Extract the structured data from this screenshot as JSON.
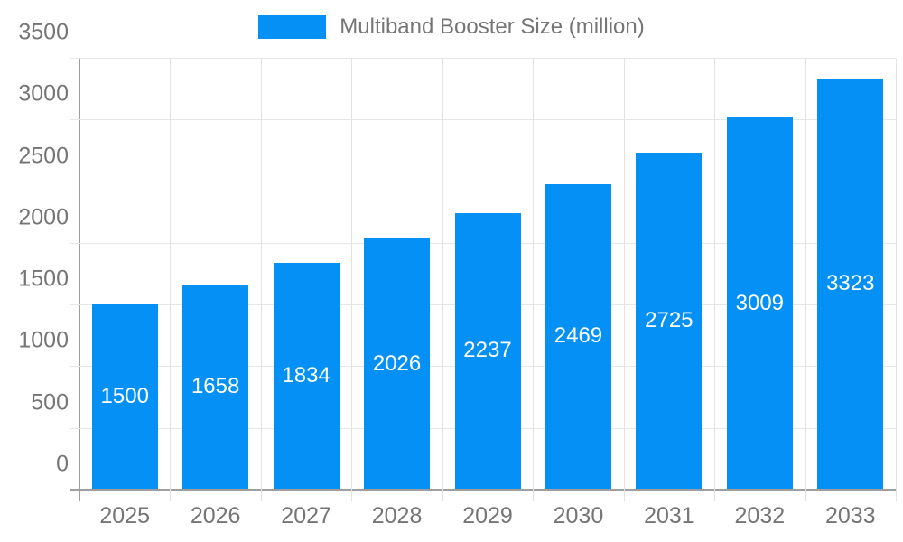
{
  "legend": {
    "label": "Multiband Booster Size (million)"
  },
  "chart_data": {
    "type": "bar",
    "title": "Multiband Booster Size (million)",
    "categories": [
      "2025",
      "2026",
      "2027",
      "2028",
      "2029",
      "2030",
      "2031",
      "2032",
      "2033"
    ],
    "values": [
      1500,
      1658,
      1834,
      2026,
      2237,
      2469,
      2725,
      3009,
      3323
    ],
    "xlabel": "",
    "ylabel": "",
    "ylim": [
      0,
      3500
    ],
    "ytick_step": 500,
    "ytick_labels": [
      "0",
      "500",
      "1000",
      "1500",
      "2000",
      "2500",
      "3000",
      "3500"
    ],
    "grid": true,
    "legend_position": "top-center",
    "value_label_style": "inside-center-white",
    "colors": {
      "bar": "#0590f5",
      "axis_text": "#757575",
      "grid_line": "#e7e7e7",
      "axis_line": "#9e9e9e",
      "background": "#ffffff"
    }
  }
}
